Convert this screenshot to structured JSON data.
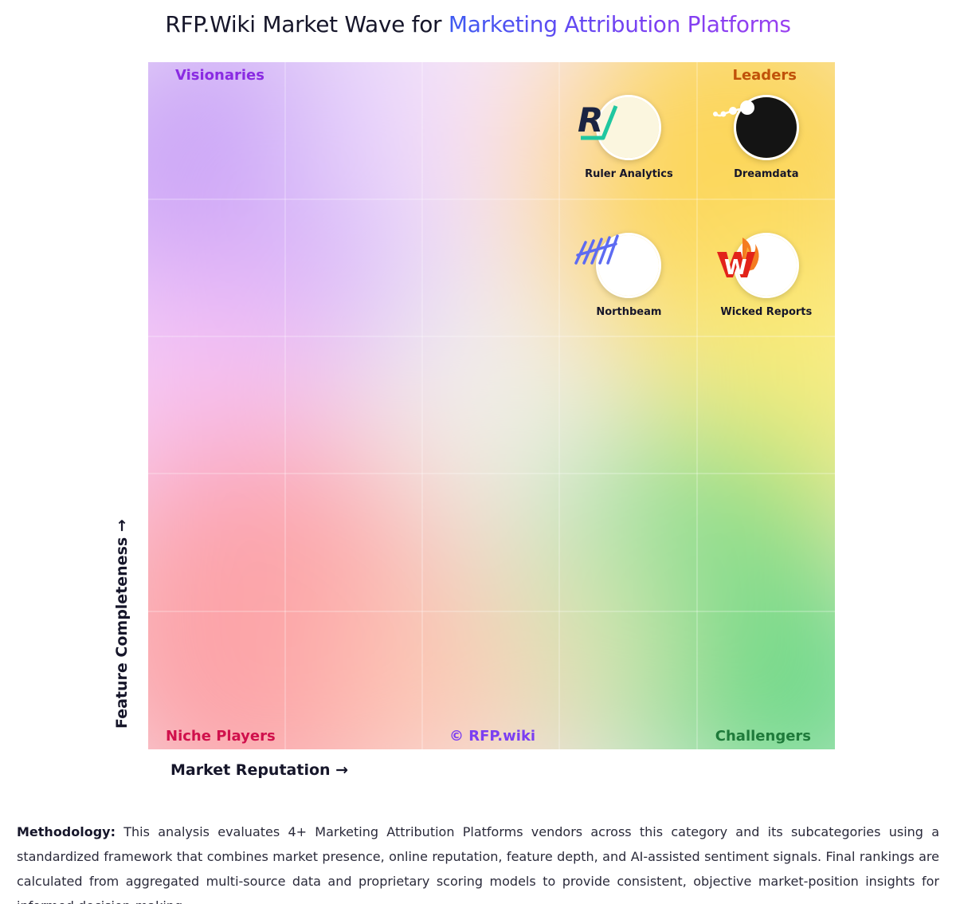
{
  "title": {
    "prefix": "RFP.Wiki Market Wave for ",
    "accent": "Marketing Attribution Platforms"
  },
  "quadrants": {
    "top_left": "Visionaries",
    "top_right": "Leaders",
    "bottom_left": "Niche Players",
    "bottom_right": "Challengers"
  },
  "watermark": "© RFP.wiki",
  "axes": {
    "x_label": "Market Reputation →",
    "y_label": "Feature Completeness →"
  },
  "colors": {
    "visionaries": "#8a2be2",
    "leaders": "#c0520a",
    "niche": "#d0104c",
    "challengers": "#1e7a3a",
    "accent_start": "#3d5af1",
    "accent_end": "#9a3ff0"
  },
  "chart_data": {
    "type": "scatter",
    "title": "RFP.Wiki Market Wave for Marketing Attribution Platforms",
    "xlabel": "Market Reputation →",
    "ylabel": "Feature Completeness →",
    "xlim": [
      0,
      5
    ],
    "ylim": [
      0,
      5
    ],
    "grid": true,
    "points": [
      {
        "name": "Ruler Analytics",
        "x": 3.5,
        "y": 4.5,
        "icon": "ruler-analytics-logo"
      },
      {
        "name": "Dreamdata",
        "x": 4.5,
        "y": 4.5,
        "icon": "dreamdata-logo"
      },
      {
        "name": "Northbeam",
        "x": 3.5,
        "y": 3.5,
        "icon": "northbeam-logo"
      },
      {
        "name": "Wicked Reports",
        "x": 4.5,
        "y": 3.5,
        "icon": "wicked-reports-logo"
      }
    ]
  },
  "methodology": {
    "label": "Methodology:",
    "text": " This analysis evaluates 4+ Marketing Attribution Platforms vendors across this category and its subcategories using a standardized framework that combines market presence, online reputation, feature depth, and AI-assisted sentiment signals. Final rankings are calculated from aggregated multi-source data and proprietary scoring models to provide consistent, objective market-position insights for informed decision-making."
  }
}
